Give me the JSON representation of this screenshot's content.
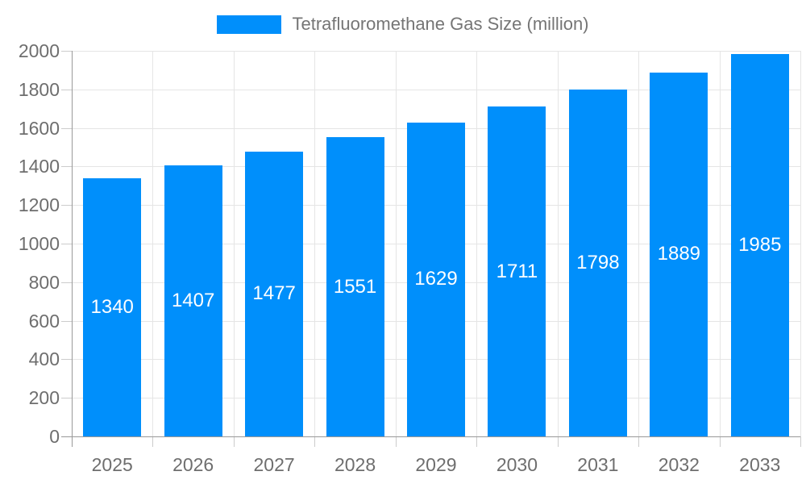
{
  "chart_data": {
    "type": "bar",
    "legend": "Tetrafluoromethane Gas Size (million)",
    "categories": [
      "2025",
      "2026",
      "2027",
      "2028",
      "2029",
      "2030",
      "2031",
      "2032",
      "2033"
    ],
    "values": [
      1340,
      1407,
      1477,
      1551,
      1629,
      1711,
      1798,
      1889,
      1985
    ],
    "title": "",
    "xlabel": "",
    "ylabel": "",
    "ylim": [
      0,
      2000
    ],
    "ytick_step": 200,
    "yticks": [
      "0",
      "200",
      "400",
      "600",
      "800",
      "1000",
      "1200",
      "1400",
      "1600",
      "1800",
      "2000"
    ],
    "grid": true,
    "legend_position": "top-center",
    "colors": {
      "bar": "#008ffb",
      "bar_label": "#ffffff",
      "axis_line": "#999999",
      "tick": "#cccccc",
      "grid_line": "#e5e5e5",
      "text": "#6e6e6e",
      "legend_text": "#757575",
      "background": "#ffffff"
    }
  }
}
